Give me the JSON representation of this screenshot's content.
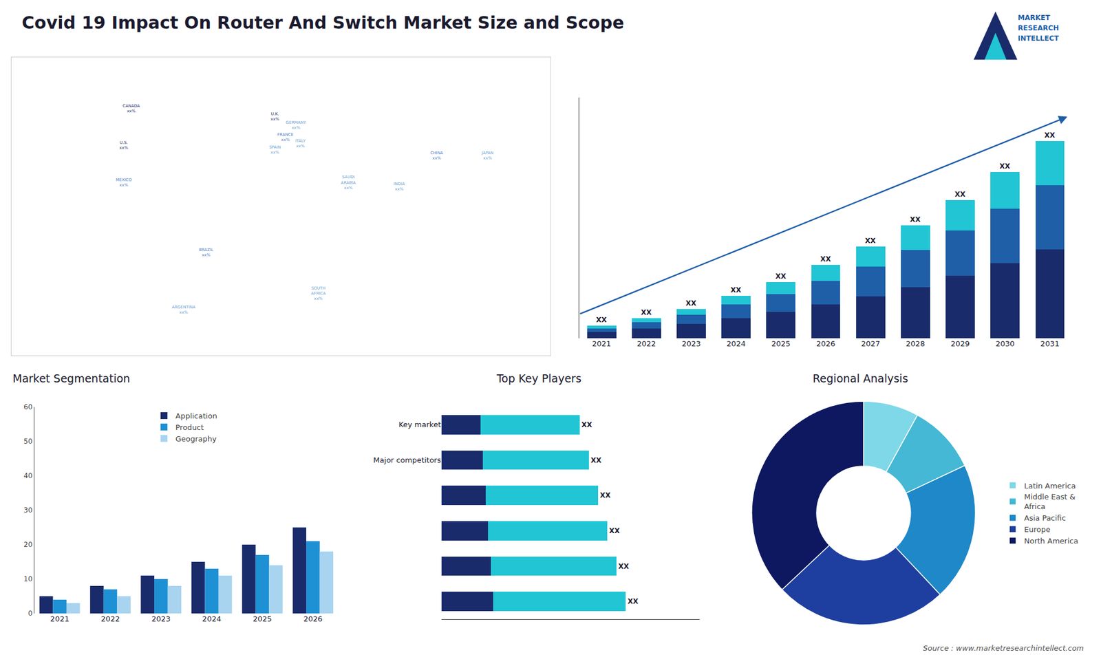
{
  "title": "Covid 19 Impact On Router And Switch Market Size and Scope",
  "annotations": [
    {
      "text": "MARKET\nRESEARCH\nINTELLECT"
    },
    {
      "text": "Source : www.marketresearchintellect.com"
    }
  ],
  "chart_data": [
    {
      "type": "scatter",
      "x": [
        -100,
        -105,
        -105,
        -50,
        -65,
        -4,
        3,
        -4,
        10,
        13,
        45,
        25,
        104,
        79,
        138
      ],
      "y": [
        60,
        42,
        24,
        -10,
        -38,
        56,
        46,
        40,
        52,
        43,
        24,
        -30,
        37,
        22,
        37
      ],
      "labels": [
        "CANADA\nxx%",
        "U.S.\nxx%",
        "MEXICO\nxx%",
        "BRAZIL\nxx%",
        "ARGENTINA\nxx%",
        "U.K.\nxx%",
        "FRANCE\nxx%",
        "SPAIN\nxx%",
        "GERMANY\nxx%",
        "ITALY\nxx%",
        "SAUDI\nARABIA\nxx%",
        "SOUTH\nAFRICA\nxx%",
        "CHINA\nxx%",
        "INDIA\nxx%",
        "JAPAN\nxx%"
      ],
      "colors": [
        "#1a2b6b",
        "#1a2b6b",
        "#4a7abf",
        "#4a7abf",
        "#6ea0d0",
        "#1a2b6b",
        "#4a7abf",
        "#6ea0d0",
        "#6ea0d0",
        "#6ea0d0",
        "#6ea0d0",
        "#6ea0d0",
        "#4a7abf",
        "#6ea0d0",
        "#6ea0d0"
      ],
      "xlim": [
        -180,
        180
      ],
      "ylim": [
        -60,
        85
      ],
      "xticks": [],
      "yticks": [],
      "tick_labels": false,
      "grid": false
    },
    {
      "type": "bar",
      "stacked": true,
      "categories": [
        "2021",
        "2022",
        "2023",
        "2024",
        "2025",
        "2026",
        "2027",
        "2028",
        "2029",
        "2030",
        "2031"
      ],
      "series": [
        {
          "color": "#1a2b6b",
          "values": [
            1.0,
            1.6,
            2.3,
            3.2,
            4.2,
            5.4,
            6.7,
            8.2,
            10.0,
            12.0,
            14.2
          ]
        },
        {
          "color": "#1e5fa8",
          "values": [
            0.6,
            1.0,
            1.5,
            2.2,
            2.9,
            3.8,
            4.8,
            5.9,
            7.2,
            8.7,
            10.3
          ]
        },
        {
          "color": "#22c5d4",
          "values": [
            0.4,
            0.6,
            0.9,
            1.4,
            1.9,
            2.5,
            3.2,
            4.0,
            4.9,
            5.9,
            7.0
          ],
          "value_labels": [
            "XX",
            "XX",
            "XX",
            "XX",
            "XX",
            "XX",
            "XX",
            "XX",
            "XX",
            "XX",
            "XX"
          ]
        }
      ],
      "data_labels": true,
      "ylim": [
        0,
        38.5
      ],
      "yticks": [],
      "tick_labels": "x",
      "grid": false
    },
    {
      "type": "bar",
      "title": "Market Segmentation",
      "categories": [
        "2021",
        "2022",
        "2023",
        "2024",
        "2025",
        "2026"
      ],
      "series": [
        {
          "name": "Application",
          "color": "#1a2b6b",
          "values": [
            5,
            8,
            11,
            15,
            20,
            25
          ]
        },
        {
          "name": "Product",
          "color": "#1e90d4",
          "values": [
            4,
            7,
            10,
            13,
            17,
            21
          ]
        },
        {
          "name": "Geography",
          "color": "#a8d4f0",
          "values": [
            3,
            5,
            8,
            11,
            14,
            18
          ]
        }
      ],
      "ylim": [
        0,
        60
      ],
      "yticks": [
        0,
        10,
        20,
        30,
        40,
        50,
        60
      ],
      "legend": "top",
      "grid": false
    },
    {
      "type": "bar",
      "orientation": "horizontal",
      "stacked": true,
      "title": "Top Key Players",
      "categories": [
        null,
        null,
        null,
        null,
        "Major competitors",
        "Key market"
      ],
      "series": [
        {
          "color": "#1a2b6b",
          "values": [
            2.8,
            2.66,
            2.52,
            2.38,
            2.24,
            2.1
          ]
        },
        {
          "color": "#22c5d4",
          "values": [
            7.2,
            6.84,
            6.48,
            6.12,
            5.76,
            5.4
          ],
          "value_labels": [
            "XX",
            "XX",
            "XX",
            "XX",
            "XX",
            "XX"
          ]
        }
      ],
      "data_labels": true,
      "xlim": [
        0,
        14
      ],
      "xticks": [],
      "tick_labels": "y",
      "grid": false
    },
    {
      "type": "donut",
      "title": "Regional Analysis",
      "categories": [
        "Latin America",
        "Middle East &\nAfrica",
        "Asia Pacific",
        "Europe",
        "North America"
      ],
      "values": [
        8,
        10,
        20,
        25,
        37
      ],
      "colors": [
        "#7fd8e8",
        "#44b8d4",
        "#1e88c8",
        "#1e3fa0",
        "#0d1860"
      ],
      "legend": "right"
    }
  ]
}
